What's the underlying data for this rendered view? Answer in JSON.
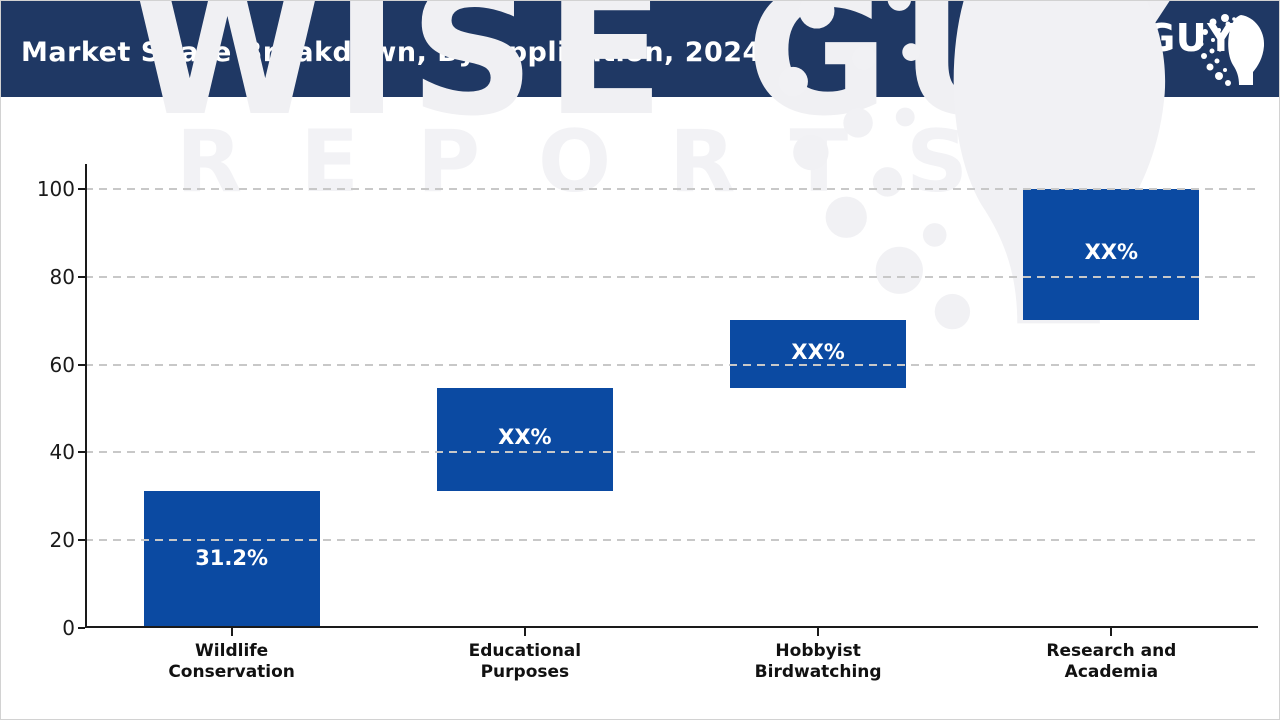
{
  "header": {
    "title": "Market Share Breakdown, By Application, 2024",
    "bg_color": "#1f3864",
    "logo": {
      "line1": "WISE GUY",
      "line2": "REPORTS"
    }
  },
  "watermark": {
    "line1": "WISE GUY",
    "line2": "REPORTS"
  },
  "chart_data": {
    "type": "bar",
    "subtype": "waterfall",
    "title": "Market Share Breakdown, By Application, 2024",
    "categories": [
      "Wildlife\nConservation",
      "Educational\nPurposes",
      "Hobbyist\nBirdwatching",
      "Research and\nAcademia"
    ],
    "series": [
      {
        "name": "Market Share (%)",
        "starts": [
          0,
          31.2,
          54.7,
          70.2
        ],
        "ends": [
          31.2,
          54.7,
          70.2,
          100
        ]
      }
    ],
    "bar_labels": [
      "31.2%",
      "XX%",
      "XX%",
      "XX%"
    ],
    "yticks": [
      0,
      20,
      40,
      60,
      80,
      100
    ],
    "ylim": [
      0,
      105
    ],
    "xlabel": "",
    "ylabel": "",
    "grid": "horizontal-dashed",
    "legend": "none",
    "bar_color": "#0b4aa2",
    "bar_label_color": "#ffffff",
    "axis_color": "#1a1a1a",
    "grid_color": "#c8c8c8"
  }
}
